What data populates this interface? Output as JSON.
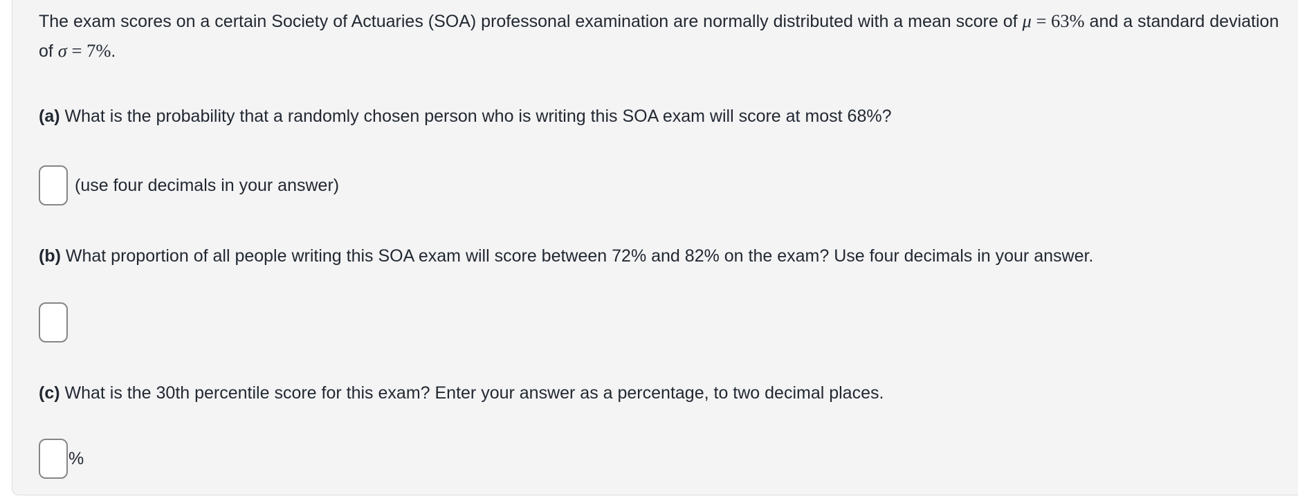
{
  "colors": {
    "page_bg": "#ffffff",
    "card_bg": "#f4f4f5",
    "card_border": "#dcdcde",
    "text": "#222831",
    "input_border": "#858585",
    "input_bg": "#ffffff"
  },
  "intro": {
    "part1": "The exam scores on a certain Society of Actuaries (SOA) professonal examination are normally distributed with a mean score of ",
    "mu_symbol": "μ",
    "mu_relation": " = ",
    "mu_value": "63%",
    "part2": " and a standard deviation of ",
    "sigma_symbol": "σ",
    "sigma_relation": " = ",
    "sigma_value": "7%",
    "part3": "."
  },
  "questions": [
    {
      "label": "(a)",
      "text": "What is the probability that a randomly chosen person who is writing this SOA exam will score at most 68%?",
      "hint": "(use four decimals in your answer)"
    },
    {
      "label": "(b)",
      "text": "What proportion of all people writing this SOA exam will score between 72% and 82% on the exam? Use four decimals in your answer."
    },
    {
      "label": "(c)",
      "text": "What is the 30th percentile score for this exam? Enter your answer as a percentage, to two decimal places.",
      "suffix": "%"
    }
  ],
  "inputs": {
    "a_value": "",
    "b_value": "",
    "c_value": ""
  }
}
